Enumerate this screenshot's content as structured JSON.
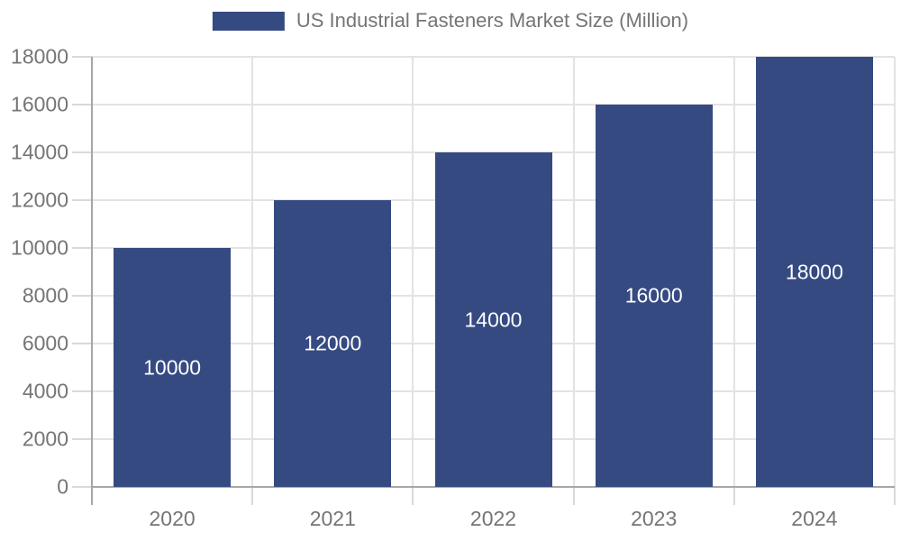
{
  "chart_data": {
    "type": "bar",
    "title": "US Industrial Fasteners Market Size (Million)",
    "legend_label": "US Industrial Fasteners Market Size (Million)",
    "legend_position": "top",
    "categories": [
      "2020",
      "2021",
      "2022",
      "2023",
      "2024"
    ],
    "series": [
      {
        "name": "US Industrial Fasteners Market Size (Million)",
        "values": [
          10000,
          12000,
          14000,
          16000,
          18000
        ]
      }
    ],
    "data_labels": [
      "10000",
      "12000",
      "14000",
      "16000",
      "18000"
    ],
    "xlabel": "",
    "ylabel": "",
    "ylim": [
      0,
      18000
    ],
    "ytick_step": 2000,
    "ytick_labels": [
      "0",
      "2000",
      "4000",
      "6000",
      "8000",
      "10000",
      "12000",
      "14000",
      "16000",
      "18000"
    ],
    "grid": true,
    "colors": {
      "bar": "#364a82",
      "bar_value_label": "#ffffff",
      "axis_text": "#757575",
      "gridline": "#e3e3e3",
      "tick": "#d9d9d9",
      "axis_line": "#a6a6a6",
      "background": "#ffffff"
    }
  }
}
